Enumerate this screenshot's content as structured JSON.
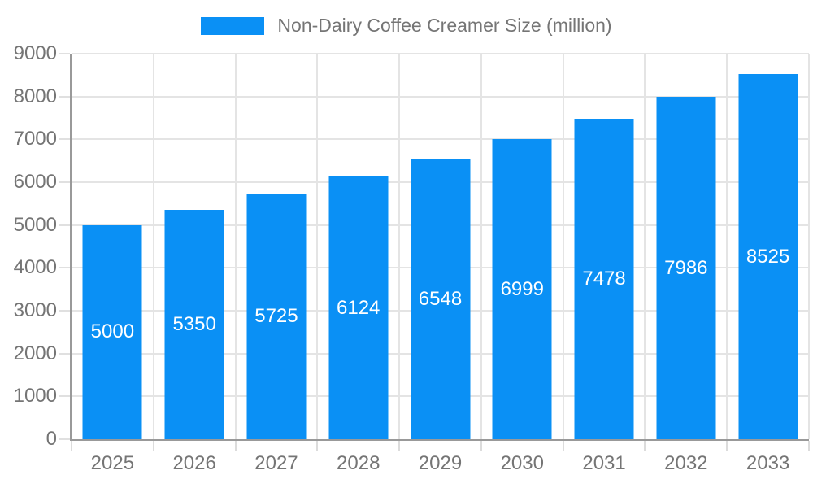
{
  "chart_data": {
    "type": "bar",
    "title": "",
    "legend": {
      "label": "Non-Dairy Coffee Creamer Size (million)",
      "position": "top-center"
    },
    "categories": [
      "2025",
      "2026",
      "2027",
      "2028",
      "2029",
      "2030",
      "2031",
      "2032",
      "2033"
    ],
    "values": [
      5000,
      5350,
      5725,
      6124,
      6548,
      6999,
      7478,
      7986,
      8525
    ],
    "value_labels_visible": true,
    "xlabel": "",
    "ylabel": "",
    "ylim": [
      0,
      9000
    ],
    "yticks": [
      0,
      1000,
      2000,
      3000,
      4000,
      5000,
      6000,
      7000,
      8000,
      9000
    ],
    "grid": "horizontal-and-vertical",
    "colors": {
      "bar": "#0A90F5",
      "grid": "#E4E4E4",
      "axis": "#999999",
      "tick": "#DCDCDC",
      "axis_text": "#757575",
      "value_text": "#FFFFFF",
      "background": "#FFFFFF"
    }
  }
}
